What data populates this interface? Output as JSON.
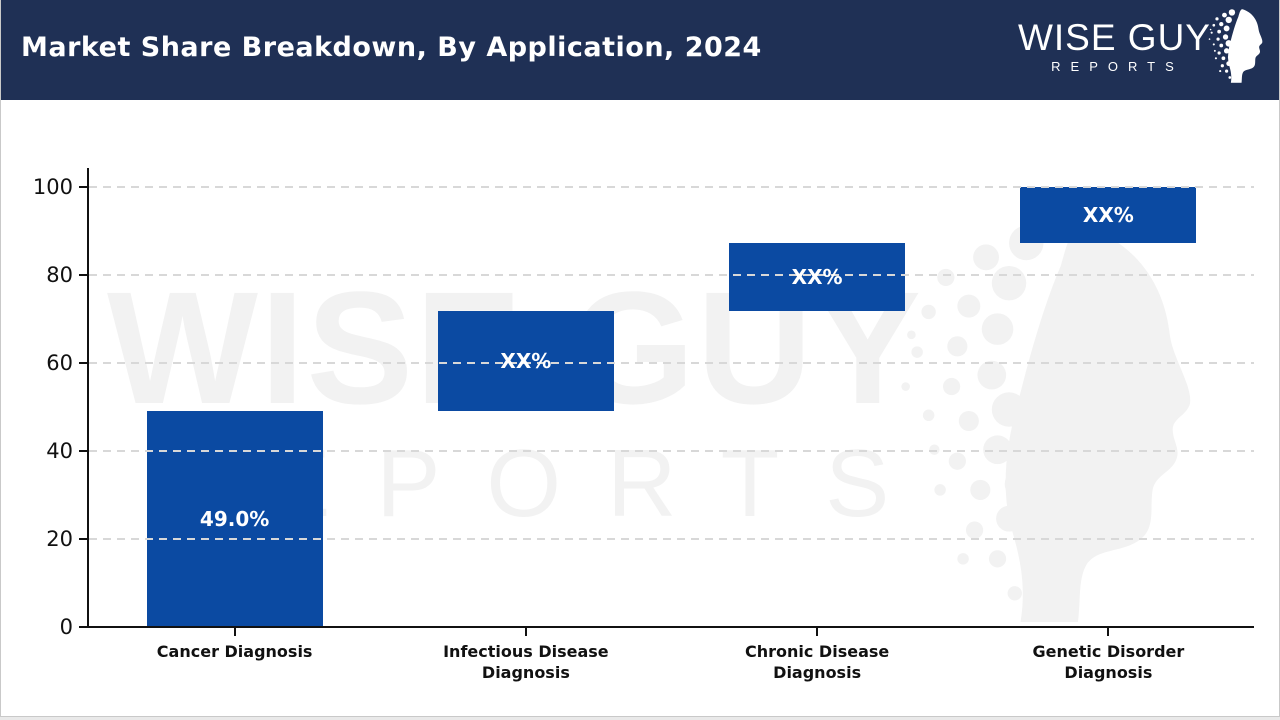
{
  "header": {
    "title": "Market Share Breakdown, By Application, 2024",
    "logo": {
      "line1": "WISE GUY",
      "line2": "REPORTS"
    }
  },
  "watermark": {
    "line1": "WISE GUY",
    "line2": "REPORTS"
  },
  "chart_data": {
    "type": "bar",
    "subtype": "waterfall",
    "title": "Market Share Breakdown, By Application, 2024",
    "categories": [
      "Cancer Diagnosis",
      "Infectious Disease Diagnosis",
      "Chronic Disease Diagnosis",
      "Genetic Disorder Diagnosis"
    ],
    "segments": [
      {
        "category": "Cancer Diagnosis",
        "start": 0,
        "end": 49.0,
        "label": "49.0%"
      },
      {
        "category": "Infectious Disease Diagnosis",
        "start": 49.0,
        "end": 71.8,
        "label": "XX%"
      },
      {
        "category": "Chronic Disease Diagnosis",
        "start": 71.8,
        "end": 87.3,
        "label": "XX%"
      },
      {
        "category": "Genetic Disorder Diagnosis",
        "start": 87.3,
        "end": 100.0,
        "label": "XX%"
      }
    ],
    "ylim": [
      0,
      100
    ],
    "yticks": [
      0,
      20,
      40,
      60,
      80,
      100
    ],
    "xlabel": "",
    "ylabel": "",
    "grid": "horizontal-dashed",
    "legend": "none",
    "bar_color": "#0b4aa2"
  },
  "colors": {
    "header_bg": "#1f3055",
    "bar": "#0b4aa2",
    "bar_label": "#ffffff",
    "axis": "#111111",
    "grid": "#d8d8d8",
    "watermark": "#f2f2f2",
    "page_border": "#c9c9c9"
  }
}
